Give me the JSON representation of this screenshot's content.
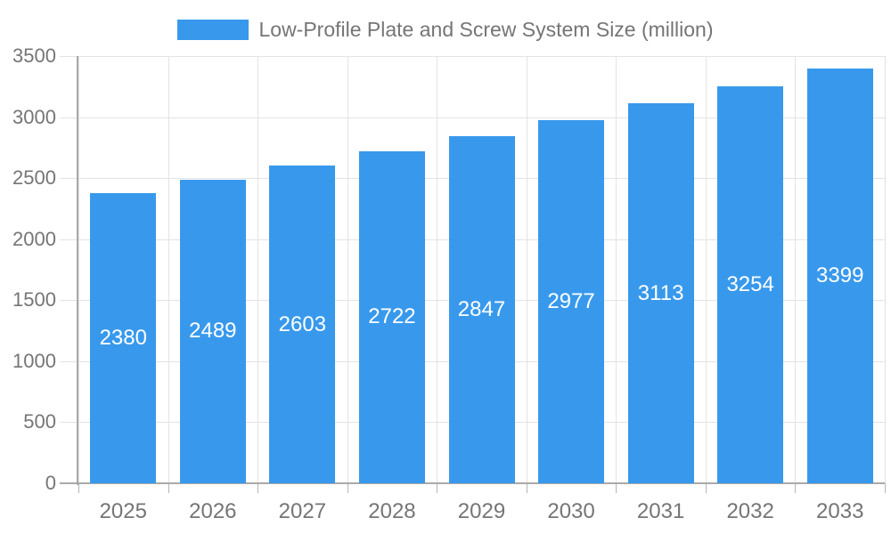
{
  "legend": {
    "label": "Low-Profile Plate and Screw System Size (million)"
  },
  "chart_data": {
    "type": "bar",
    "title": "Low-Profile Plate and Screw System Size (million)",
    "categories": [
      "2025",
      "2026",
      "2027",
      "2028",
      "2029",
      "2030",
      "2031",
      "2032",
      "2033"
    ],
    "values": [
      2380,
      2489,
      2603,
      2722,
      2847,
      2977,
      3113,
      3254,
      3399
    ],
    "xlabel": "",
    "ylabel": "",
    "ylim": [
      0,
      3500
    ],
    "yticks": [
      0,
      500,
      1000,
      1500,
      2000,
      2500,
      3000,
      3500
    ],
    "grid": true,
    "legend_position": "top",
    "colors": {
      "bar": "#3899ec",
      "value_label": "#ffffff",
      "axis_text": "#757575",
      "gridline": "#e3e3e3",
      "axis_line": "#a9a9a9",
      "tick": "#b5b5b5"
    }
  }
}
